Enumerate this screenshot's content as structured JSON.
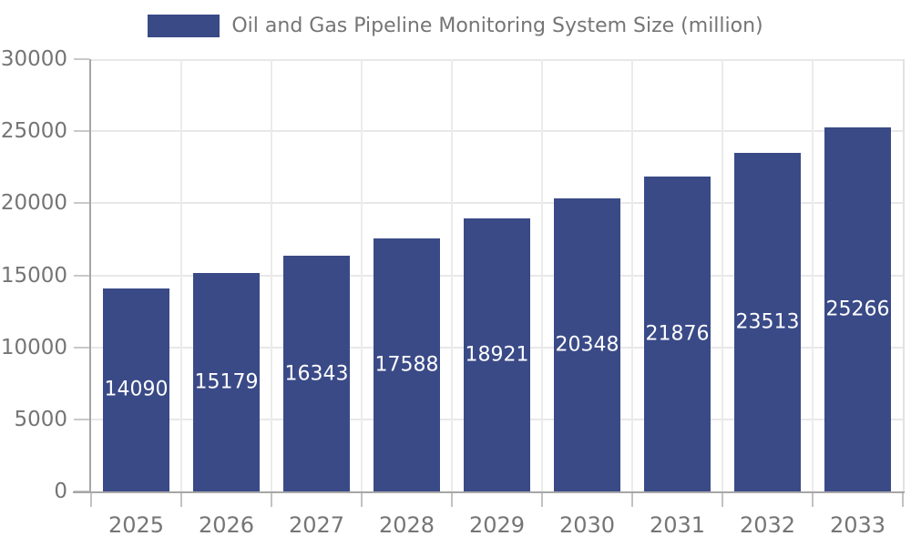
{
  "chart_data": {
    "type": "bar",
    "title": "",
    "legend": {
      "label": "Oil and Gas Pipeline Monitoring System Size (million)",
      "position": "top-center"
    },
    "series_name": "Oil and Gas Pipeline Monitoring System Size (million)",
    "categories": [
      "2025",
      "2026",
      "2027",
      "2028",
      "2029",
      "2030",
      "2031",
      "2032",
      "2033"
    ],
    "values": [
      14090,
      15179,
      16343,
      17588,
      18921,
      20348,
      21876,
      23513,
      25266
    ],
    "xlabel": "",
    "ylabel": "",
    "ylim": [
      0,
      30000
    ],
    "yticks": [
      0,
      5000,
      10000,
      15000,
      20000,
      25000,
      30000
    ],
    "grid": true,
    "value_labels": "inside-center",
    "colors": {
      "bar": "#3a4a87",
      "bar_value_text": "#ffffff",
      "axis_line": "#a6a6a6",
      "gridline": "#e8e8e8",
      "tick_text": "#757575",
      "legend_text": "#757575",
      "background": "#ffffff"
    }
  }
}
